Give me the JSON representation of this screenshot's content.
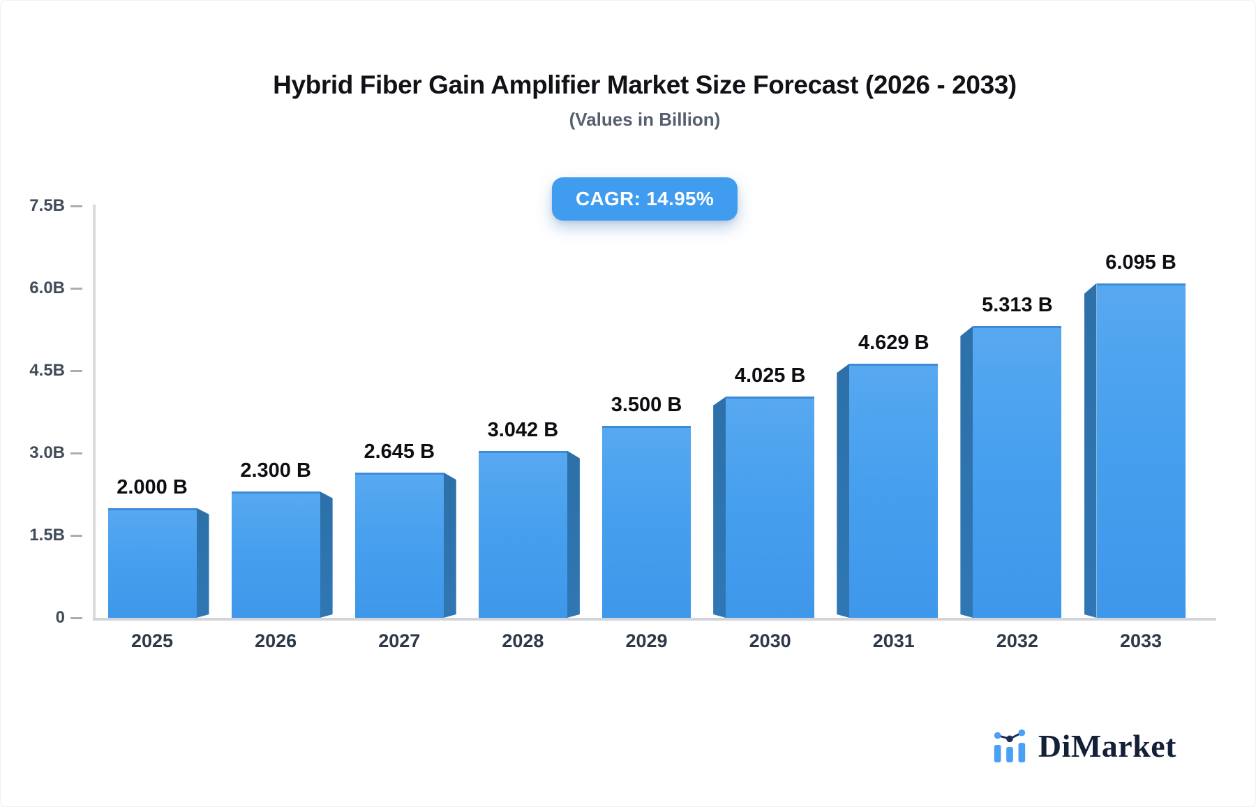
{
  "header": {
    "title": "Hybrid Fiber Gain Amplifier Market Size Forecast (2026 - 2033)",
    "subtitle": "(Values in Billion)",
    "cagr_badge": "CAGR: 14.95%"
  },
  "branding": {
    "logo_text": "DiMarket",
    "logo_icon": "bar-line-chart-icon"
  },
  "colors": {
    "bar_face_top": "#57a8f0",
    "bar_face_bottom": "#3e97ea",
    "bar_side": "#2e73ae",
    "badge_background": "#3f9cee",
    "badge_text": "#ffffff",
    "title_text": "#101217",
    "subtitle_text": "#565f6d",
    "axis_line": "#d5d7db",
    "logo_navy": "#141f38",
    "logo_blue": "#4aa0f5"
  },
  "chart_data": {
    "type": "bar",
    "title": "Hybrid Fiber Gain Amplifier Market Size Forecast (2026 - 2033)",
    "subtitle": "(Values in Billion)",
    "cagr": "14.95%",
    "categories": [
      "2025",
      "2026",
      "2027",
      "2028",
      "2029",
      "2030",
      "2031",
      "2032",
      "2033"
    ],
    "values": [
      2.0,
      2.3,
      2.645,
      3.042,
      3.5,
      4.025,
      4.629,
      5.313,
      6.095
    ],
    "value_labels": [
      "2.000 B",
      "2.300 B",
      "2.645 B",
      "3.042 B",
      "3.500 B",
      "4.025 B",
      "4.629 B",
      "5.313 B",
      "6.095 B"
    ],
    "xlabel": "",
    "ylabel": "",
    "ylim": [
      0,
      7.5
    ],
    "yticks": [
      {
        "label": "7.5B",
        "value": 7.5
      },
      {
        "label": "6.0B",
        "value": 6.0
      },
      {
        "label": "4.5B",
        "value": 4.5
      },
      {
        "label": "3.0B",
        "value": 3.0
      },
      {
        "label": "1.5B",
        "value": 1.5
      },
      {
        "label": "0",
        "value": 0
      }
    ],
    "grid": false,
    "legend": "none",
    "bar_style": "3d-perspective-blue"
  }
}
